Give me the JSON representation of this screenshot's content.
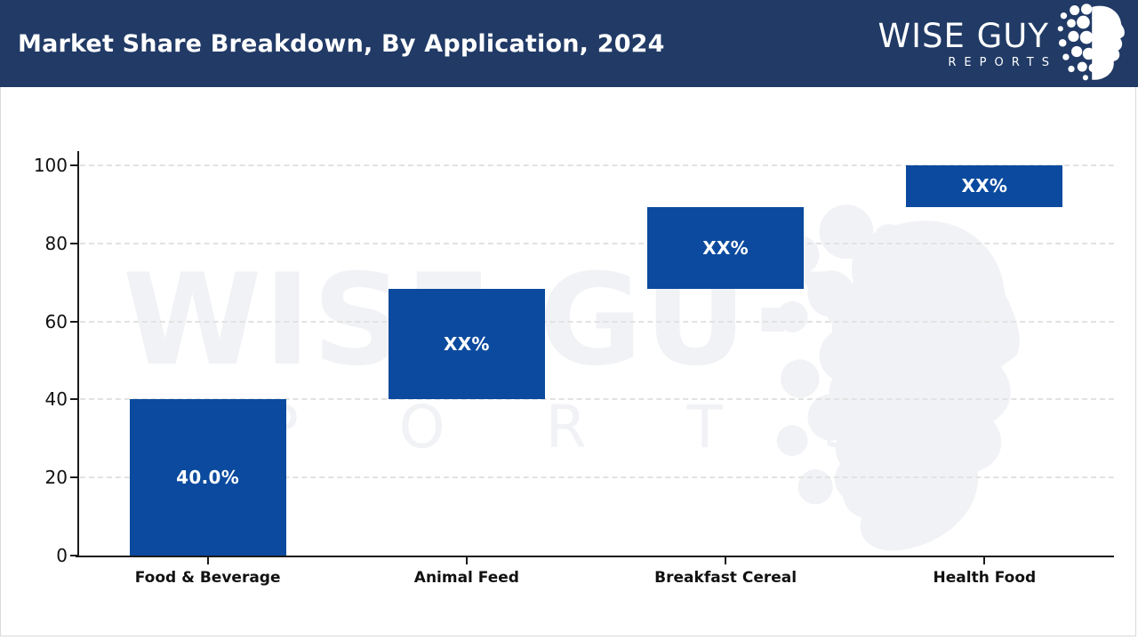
{
  "header": {
    "title": "Market Share Breakdown, By Application, 2024",
    "bg_color": "#213a66",
    "logo": {
      "name": "WISE GUY",
      "subtitle": "REPORTS"
    }
  },
  "watermark": {
    "line1": "WISE GU·Y",
    "line2": "P O R T S",
    "color": "#f1f2f5"
  },
  "chart_data": {
    "type": "bar",
    "subtype": "floating-segment percentage breakdown (waterfall-style)",
    "title": "Market Share Breakdown, By Application, 2024",
    "categories": [
      "Food & Beverage",
      "Animal Feed",
      "Breakfast Cereal",
      "Health Food"
    ],
    "bars": [
      {
        "category": "Food & Beverage",
        "start": 0,
        "end": 40,
        "label": "40.0%"
      },
      {
        "category": "Animal Feed",
        "start": 40,
        "end": 68.3,
        "label": "XX%"
      },
      {
        "category": "Breakfast Cereal",
        "start": 68.3,
        "end": 89.3,
        "label": "XX%"
      },
      {
        "category": "Health Food",
        "start": 89.3,
        "end": 100,
        "label": "XX%"
      }
    ],
    "xlabel": "",
    "ylabel": "",
    "yticks": [
      0,
      20,
      40,
      60,
      80,
      100
    ],
    "ylim": [
      0,
      103.6
    ],
    "grid": "horizontal dashed",
    "legend": "none",
    "bar_color": "#0b4a9e",
    "bar_label_color": "#ffffff",
    "axis_color": "#1a1a1a",
    "grid_color": "#e2e2e2",
    "tick_label_color": "#111111"
  }
}
